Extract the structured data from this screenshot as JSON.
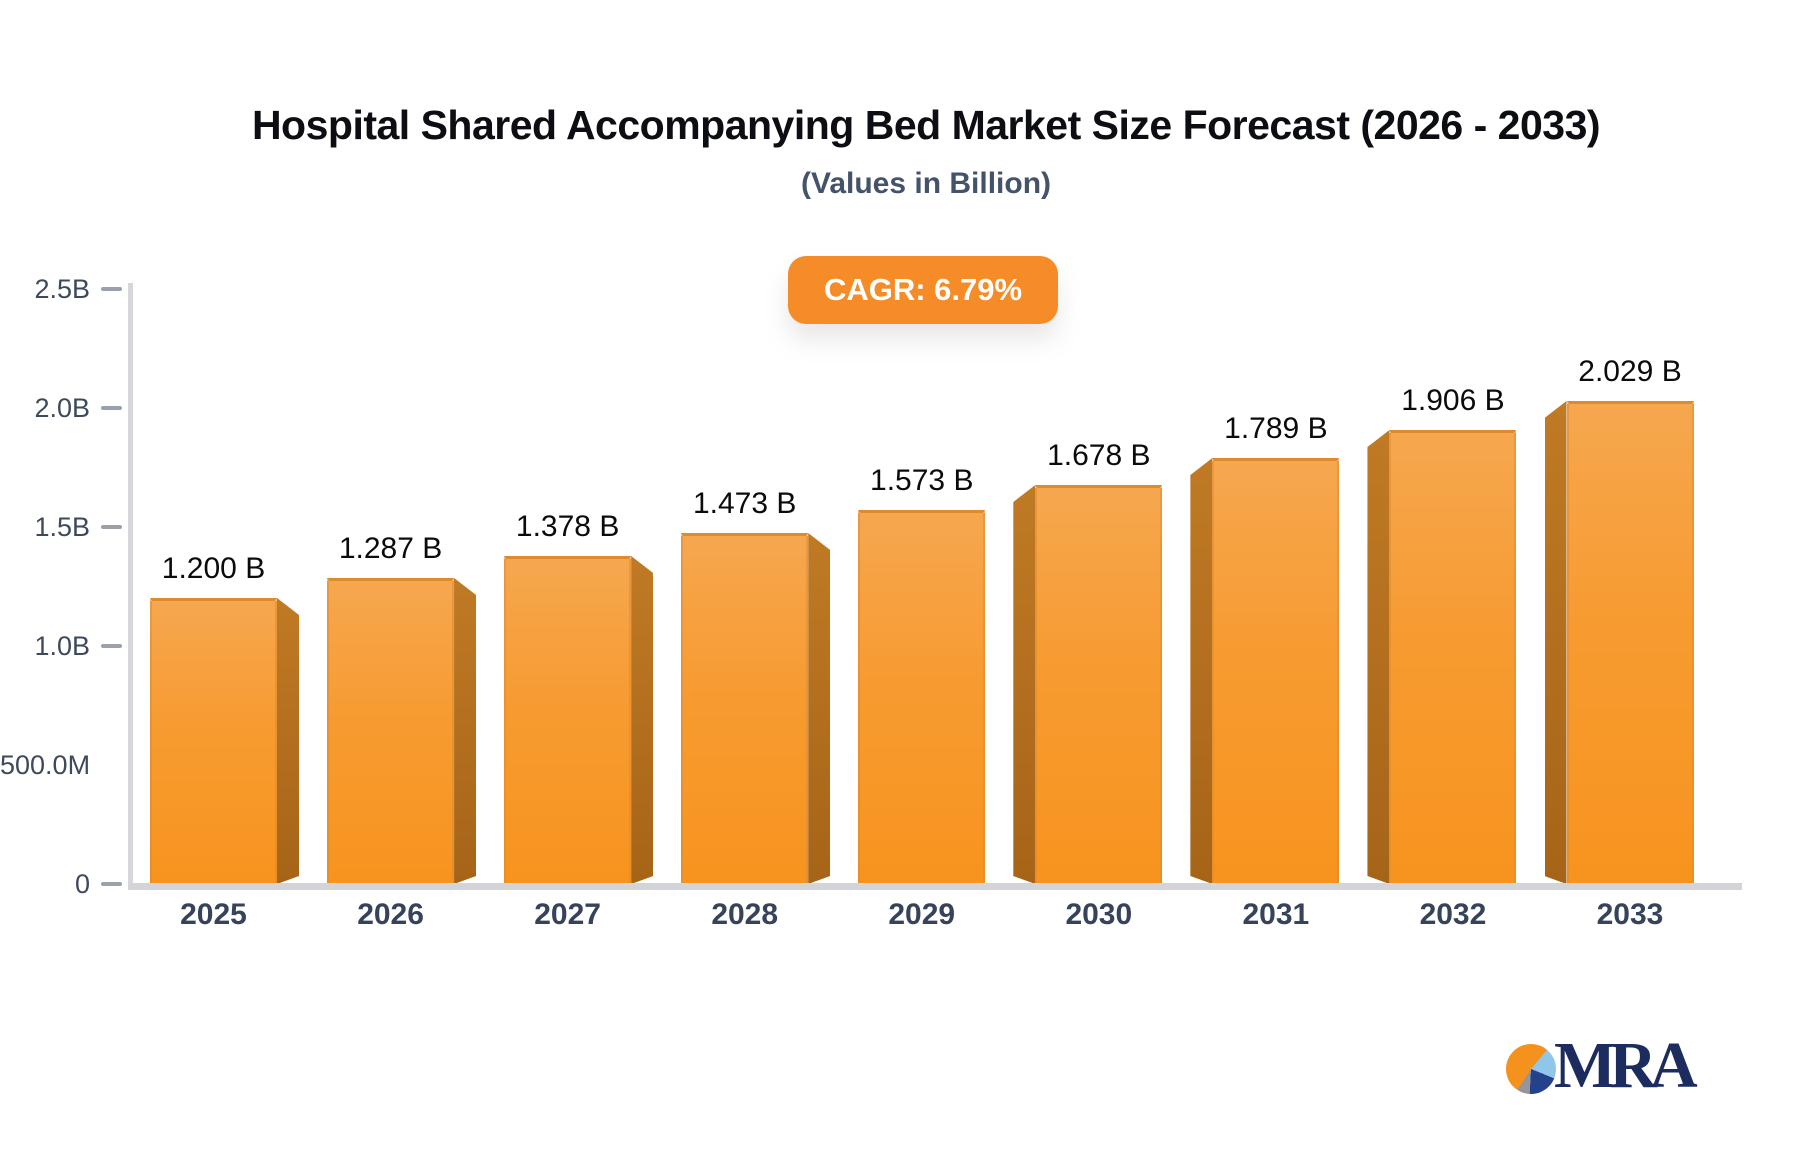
{
  "badge": {
    "label": "CAGR: 6.79%"
  },
  "chart_data": {
    "type": "bar",
    "title": "Hospital Shared Accompanying Bed Market Size Forecast (2026 - 2033)",
    "subtitle": "(Values in Billion)",
    "categories": [
      "2025",
      "2026",
      "2027",
      "2028",
      "2029",
      "2030",
      "2031",
      "2032",
      "2033"
    ],
    "values": [
      1.2,
      1.287,
      1.378,
      1.473,
      1.573,
      1.678,
      1.789,
      1.906,
      2.029
    ],
    "bar_labels": [
      "1.200 B",
      "1.287 B",
      "1.378 B",
      "1.473 B",
      "1.573 B",
      "1.678 B",
      "1.789 B",
      "1.906 B",
      "2.029 B"
    ],
    "cagr_label": "CAGR: 6.79%",
    "xlabel": "",
    "ylabel": "",
    "ylim": [
      0,
      2.5
    ],
    "yticks": [
      {
        "label": "2.5B",
        "value": 2.5,
        "dash": true
      },
      {
        "label": "2.0B",
        "value": 2.0,
        "dash": true
      },
      {
        "label": "1.5B",
        "value": 1.5,
        "dash": true
      },
      {
        "label": "1.0B",
        "value": 1.0,
        "dash": true
      },
      {
        "label": "500.0M",
        "value": 0.5,
        "dash": false
      },
      {
        "label": "0",
        "value": 0,
        "dash": true
      }
    ],
    "grid": false,
    "legend": false,
    "colors": {
      "bar_front_top": "#F6A74F",
      "bar_front_bottom": "#F7941E",
      "bar_side": "#AD6A1B",
      "bar_top_edge": "#DE8B2D",
      "badge_background": "#F68C28",
      "axis_line": "#D6D7DC",
      "tick_dash": "#9BA1AB",
      "axis_text": "#3E4A5C",
      "value_text": "#0B0B0D"
    }
  },
  "logo": {
    "text": "MRA",
    "pie_colors": [
      "#F5921E",
      "#8FC6E9",
      "#24418B",
      "#96959C"
    ],
    "text_color": "#1D2C5E"
  }
}
